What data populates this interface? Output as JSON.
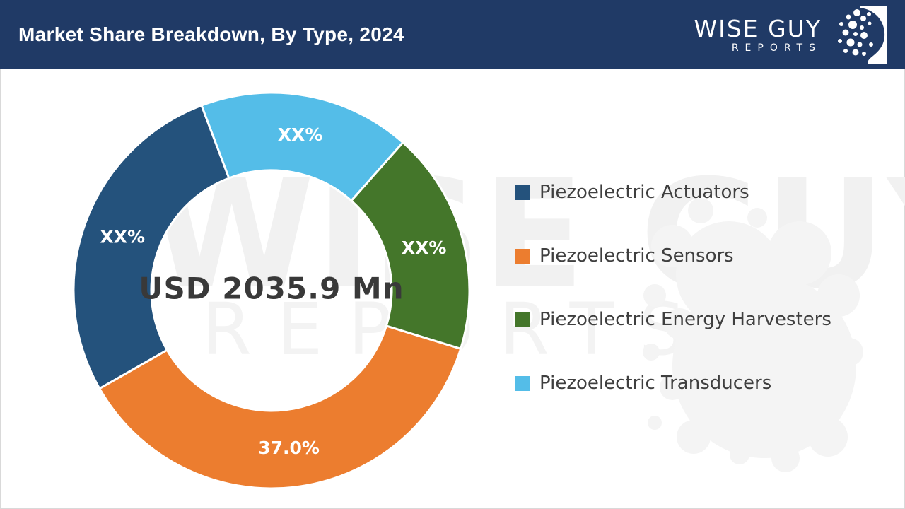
{
  "header": {
    "title": "Market Share Breakdown, By Type, 2024",
    "logo": {
      "line1": "WISE GUY",
      "line2": "REPORTS"
    }
  },
  "watermark": {
    "line1": "WISE GUY",
    "line2": "REPORTS"
  },
  "chart_data": {
    "type": "donut",
    "title": "Market Share Breakdown, By Type, 2024",
    "center_label": "USD 2035.9 Mn",
    "startangle_deg": 110.7,
    "direction": "counterclockwise",
    "legend_position": "right",
    "series": [
      {
        "name": "Piezoelectric Actuators",
        "value_pct": 27.5,
        "display_label": "XX%",
        "color": "#24527C"
      },
      {
        "name": "Piezoelectric Sensors",
        "value_pct": 37.0,
        "display_label": "37.0%",
        "color": "#EC7D2F"
      },
      {
        "name": "Piezoelectric Energy Harvesters",
        "value_pct": 18.2,
        "display_label": "XX%",
        "color": "#44762A"
      },
      {
        "name": "Piezoelectric Transducers",
        "value_pct": 17.3,
        "display_label": "XX%",
        "color": "#54BDE8"
      }
    ]
  },
  "theme": {
    "header_bg": "#203a66",
    "border": "#d9d9d9",
    "watermark": "#f2f2f2",
    "text_dark": "#393939"
  }
}
